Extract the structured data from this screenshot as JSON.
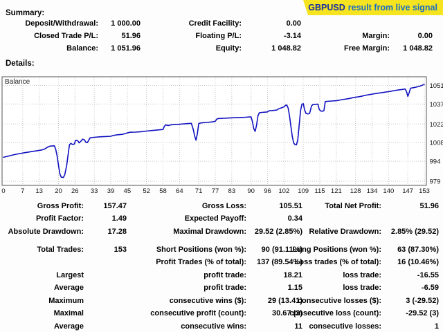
{
  "badge": {
    "symbol": "GBPUSD",
    "text": "result from live signal"
  },
  "colors": {
    "badge_bg": "#f5e41f",
    "badge_symbol": "#18309e",
    "badge_text": "#1b6ec2",
    "chart_line": "#0f10c0",
    "grid": "#c6c6c6",
    "frame": "#555555"
  },
  "summary": {
    "title": "Summary:",
    "rows": [
      {
        "cells": [
          {
            "label": "Deposit/Withdrawal:",
            "value": "1 000.00"
          },
          {
            "label": "Credit Facility:",
            "value": "0.00"
          },
          null
        ]
      },
      {
        "cells": [
          {
            "label": "Closed Trade P/L:",
            "value": "51.96"
          },
          {
            "label": "Floating P/L:",
            "value": "-3.14"
          },
          {
            "label": "Margin:",
            "value": "0.00"
          }
        ]
      },
      {
        "cells": [
          {
            "label": "Balance:",
            "value": "1 051.96"
          },
          {
            "label": "Equity:",
            "value": "1 048.82"
          },
          {
            "label": "Free Margin:",
            "value": "1 048.82"
          }
        ]
      }
    ]
  },
  "details_title": "Details:",
  "chart_data": {
    "type": "line",
    "title": "Balance",
    "legend_position": "top-left",
    "grid": true,
    "xlim": [
      0,
      153
    ],
    "ylim": [
      976,
      1058
    ],
    "x_ticks": [
      0,
      7,
      13,
      20,
      26,
      33,
      39,
      45,
      52,
      58,
      64,
      71,
      77,
      83,
      90,
      96,
      102,
      109,
      115,
      121,
      128,
      134,
      140,
      147,
      153
    ],
    "y_ticks": [
      1051,
      1037,
      1022,
      1008,
      994,
      979
    ],
    "series": [
      {
        "name": "Balance",
        "points": [
          [
            0,
            997
          ],
          [
            2,
            998
          ],
          [
            4,
            999
          ],
          [
            6,
            999.8
          ],
          [
            8,
            1000.5
          ],
          [
            10,
            1001.2
          ],
          [
            12,
            1001.8
          ],
          [
            14,
            1002.5
          ],
          [
            15,
            1003.2
          ],
          [
            16,
            1004.6
          ],
          [
            17,
            1005.4
          ],
          [
            18.5,
            1005.6
          ],
          [
            19,
            1003
          ],
          [
            19.5,
            998
          ],
          [
            20,
            991
          ],
          [
            20.5,
            984.5
          ],
          [
            21,
            982
          ],
          [
            21.8,
            981.8
          ],
          [
            22.3,
            984
          ],
          [
            23,
            991
          ],
          [
            23.5,
            999
          ],
          [
            24,
            1006.5
          ],
          [
            24.5,
            1007.4
          ],
          [
            25.2,
            1006.6
          ],
          [
            25.8,
            1007
          ],
          [
            26.2,
            1009.8
          ],
          [
            27,
            1009.4
          ],
          [
            27.5,
            1007.8
          ],
          [
            28.2,
            1009.2
          ],
          [
            28.8,
            1010.6
          ],
          [
            29.4,
            1010.2
          ],
          [
            30,
            1008.2
          ],
          [
            30.5,
            1008
          ],
          [
            31,
            1009.8
          ],
          [
            31.5,
            1011.6
          ],
          [
            33,
            1012
          ],
          [
            35,
            1012.4
          ],
          [
            37,
            1012.6
          ],
          [
            39,
            1012.8
          ],
          [
            40,
            1013.4
          ],
          [
            41,
            1013.8
          ],
          [
            43,
            1014.2
          ],
          [
            44,
            1014.6
          ],
          [
            45,
            1015.3
          ],
          [
            46,
            1015.8
          ],
          [
            48,
            1015.9
          ],
          [
            50,
            1016.2
          ],
          [
            52,
            1016.7
          ],
          [
            54,
            1017.1
          ],
          [
            56,
            1017.5
          ],
          [
            58,
            1017.9
          ],
          [
            58.5,
            1020.2
          ],
          [
            59,
            1021.4
          ],
          [
            59.5,
            1021
          ],
          [
            60,
            1020.9
          ],
          [
            61,
            1021.4
          ],
          [
            63,
            1021.7
          ],
          [
            65,
            1022
          ],
          [
            67,
            1022.3
          ],
          [
            68.3,
            1022.5
          ],
          [
            69,
            1018
          ],
          [
            69.5,
            1013
          ],
          [
            70,
            1009.8
          ],
          [
            70.5,
            1015
          ],
          [
            71,
            1022.4
          ],
          [
            72,
            1022.9
          ],
          [
            74,
            1023.2
          ],
          [
            76,
            1023.6
          ],
          [
            77,
            1024
          ],
          [
            77.5,
            1025.6
          ],
          [
            78,
            1026.1
          ],
          [
            80,
            1026.3
          ],
          [
            82,
            1026.5
          ],
          [
            84,
            1026.7
          ],
          [
            86,
            1026.9
          ],
          [
            88,
            1027.1
          ],
          [
            90,
            1027.4
          ],
          [
            90.5,
            1024
          ],
          [
            91,
            1018.5
          ],
          [
            91.5,
            1016.5
          ],
          [
            92,
            1021
          ],
          [
            92.5,
            1028
          ],
          [
            93,
            1030.4
          ],
          [
            94,
            1030.7
          ],
          [
            95,
            1030.9
          ],
          [
            96,
            1031.1
          ],
          [
            96.5,
            1031.9
          ],
          [
            97.5,
            1032.1
          ],
          [
            98.5,
            1032.3
          ],
          [
            99.5,
            1032.6
          ],
          [
            100,
            1033.4
          ],
          [
            101,
            1034.1
          ],
          [
            102,
            1034.9
          ],
          [
            102.5,
            1035.9
          ],
          [
            103,
            1036.3
          ],
          [
            103.5,
            1034
          ],
          [
            104,
            1028
          ],
          [
            104.5,
            1020
          ],
          [
            105,
            1012.5
          ],
          [
            105.5,
            1007.8
          ],
          [
            106,
            1006.5
          ],
          [
            106.5,
            1006.3
          ],
          [
            107,
            1010
          ],
          [
            107.5,
            1021
          ],
          [
            108,
            1032
          ],
          [
            108.5,
            1036.9
          ],
          [
            109,
            1037.3
          ],
          [
            109.5,
            1032.5
          ],
          [
            110,
            1029.9
          ],
          [
            110.7,
            1029.6
          ],
          [
            111.3,
            1030
          ],
          [
            112,
            1035.6
          ],
          [
            112.5,
            1036.6
          ],
          [
            113.5,
            1036.8
          ],
          [
            114.3,
            1036.9
          ],
          [
            114.8,
            1033
          ],
          [
            115.3,
            1031.8
          ],
          [
            116,
            1031.6
          ],
          [
            116.5,
            1032
          ],
          [
            117,
            1038.9
          ],
          [
            118,
            1039.1
          ],
          [
            119.5,
            1039.3
          ],
          [
            121,
            1039.5
          ],
          [
            122,
            1039.9
          ],
          [
            123,
            1040.3
          ],
          [
            124,
            1040.6
          ],
          [
            125,
            1040.9
          ],
          [
            126,
            1041.3
          ],
          [
            127,
            1041.8
          ],
          [
            128,
            1042.1
          ],
          [
            129,
            1042.4
          ],
          [
            130,
            1042.8
          ],
          [
            131,
            1043.3
          ],
          [
            132,
            1043.7
          ],
          [
            133,
            1044.1
          ],
          [
            134,
            1044.4
          ],
          [
            135,
            1044.8
          ],
          [
            136,
            1045.1
          ],
          [
            137,
            1045.4
          ],
          [
            138,
            1045.7
          ],
          [
            139,
            1046
          ],
          [
            140,
            1046.3
          ],
          [
            141,
            1046.7
          ],
          [
            142,
            1047.1
          ],
          [
            143,
            1047.4
          ],
          [
            144,
            1047.7
          ],
          [
            145,
            1048
          ],
          [
            146,
            1048.3
          ],
          [
            146.5,
            1046.5
          ],
          [
            147,
            1042.8
          ],
          [
            147.5,
            1045.5
          ],
          [
            148,
            1048.9
          ],
          [
            149,
            1049.3
          ],
          [
            150,
            1049.7
          ],
          [
            151,
            1050.2
          ],
          [
            152,
            1050.9
          ],
          [
            153,
            1051.9
          ]
        ]
      }
    ]
  },
  "stats": {
    "rows": [
      {
        "cells": [
          {
            "label": "Gross Profit:",
            "value": "157.47"
          },
          {
            "label": "Gross Loss:",
            "value": "105.51"
          },
          {
            "label": "Total Net Profit:",
            "value": "51.96"
          }
        ]
      },
      {
        "cells": [
          {
            "label": "Profit Factor:",
            "value": "1.49"
          },
          {
            "label": "Expected Payoff:",
            "value": "0.34"
          },
          null
        ]
      },
      {
        "cells": [
          {
            "label": "Absolute Drawdown:",
            "value": "17.28"
          },
          {
            "label": "Maximal Drawdown:",
            "value": "29.52 (2.85%)"
          },
          {
            "label": "Relative Drawdown:",
            "value": "2.85% (29.52)"
          }
        ]
      },
      {
        "cells": [
          {
            "label": "Total Trades:",
            "value": "153"
          },
          {
            "label": "Short Positions (won %):",
            "value": "90 (91.11%)"
          },
          {
            "label": "Long Positions (won %):",
            "value": "63 (87.30%)"
          }
        ]
      },
      {
        "cells": [
          null,
          {
            "label": "Profit Trades (% of total):",
            "value": "137 (89.54%)"
          },
          {
            "label": "Loss trades (% of total):",
            "value": "16 (10.46%)"
          }
        ]
      },
      {
        "cells": [
          {
            "label": "Largest",
            "value": ""
          },
          {
            "label": "profit trade:",
            "value": "18.21"
          },
          {
            "label": "loss trade:",
            "value": "-16.55"
          }
        ]
      },
      {
        "cells": [
          {
            "label": "Average",
            "value": ""
          },
          {
            "label": "profit trade:",
            "value": "1.15"
          },
          {
            "label": "loss trade:",
            "value": "-6.59"
          }
        ]
      },
      {
        "cells": [
          {
            "label": "Maximum",
            "value": ""
          },
          {
            "label": "consecutive wins ($):",
            "value": "29 (13.41)"
          },
          {
            "label": "consecutive losses ($):",
            "value": "3 (-29.52)"
          }
        ]
      },
      {
        "cells": [
          {
            "label": "Maximal",
            "value": ""
          },
          {
            "label": "consecutive profit (count):",
            "value": "30.67 (3)"
          },
          {
            "label": "consecutive loss (count):",
            "value": "-29.52 (3)"
          }
        ]
      },
      {
        "cells": [
          {
            "label": "Average",
            "value": ""
          },
          {
            "label": "consecutive wins:",
            "value": "11"
          },
          {
            "label": "consecutive losses:",
            "value": "1"
          }
        ]
      }
    ]
  }
}
